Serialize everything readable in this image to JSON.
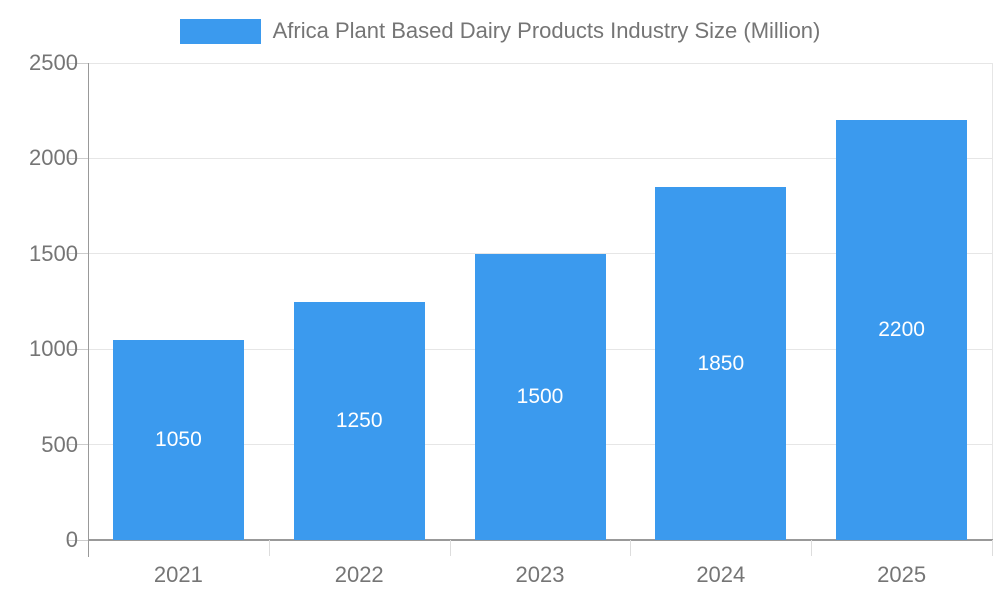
{
  "legend": {
    "label": "Africa Plant Based Dairy Products Industry Size (Million)"
  },
  "colors": {
    "bar": "#3B9AEE",
    "bar_label_text": "#ffffff",
    "axis_text": "#757575",
    "grid": "#e6e6e6",
    "axis_line": "#999999",
    "tick": "#cccccc"
  },
  "chart_data": {
    "type": "bar",
    "title": "Africa Plant Based Dairy Products Industry Size (Million)",
    "categories": [
      "2021",
      "2022",
      "2023",
      "2024",
      "2025"
    ],
    "values": [
      1050,
      1250,
      1500,
      1850,
      2200
    ],
    "bar_labels": [
      1050,
      1250,
      1500,
      1850,
      2200
    ],
    "xlabel": "",
    "ylabel": "",
    "ylim": [
      0,
      2500
    ],
    "yticks": [
      0,
      500,
      1000,
      1500,
      2000,
      2500
    ],
    "grid": true,
    "legend_position": "top"
  }
}
